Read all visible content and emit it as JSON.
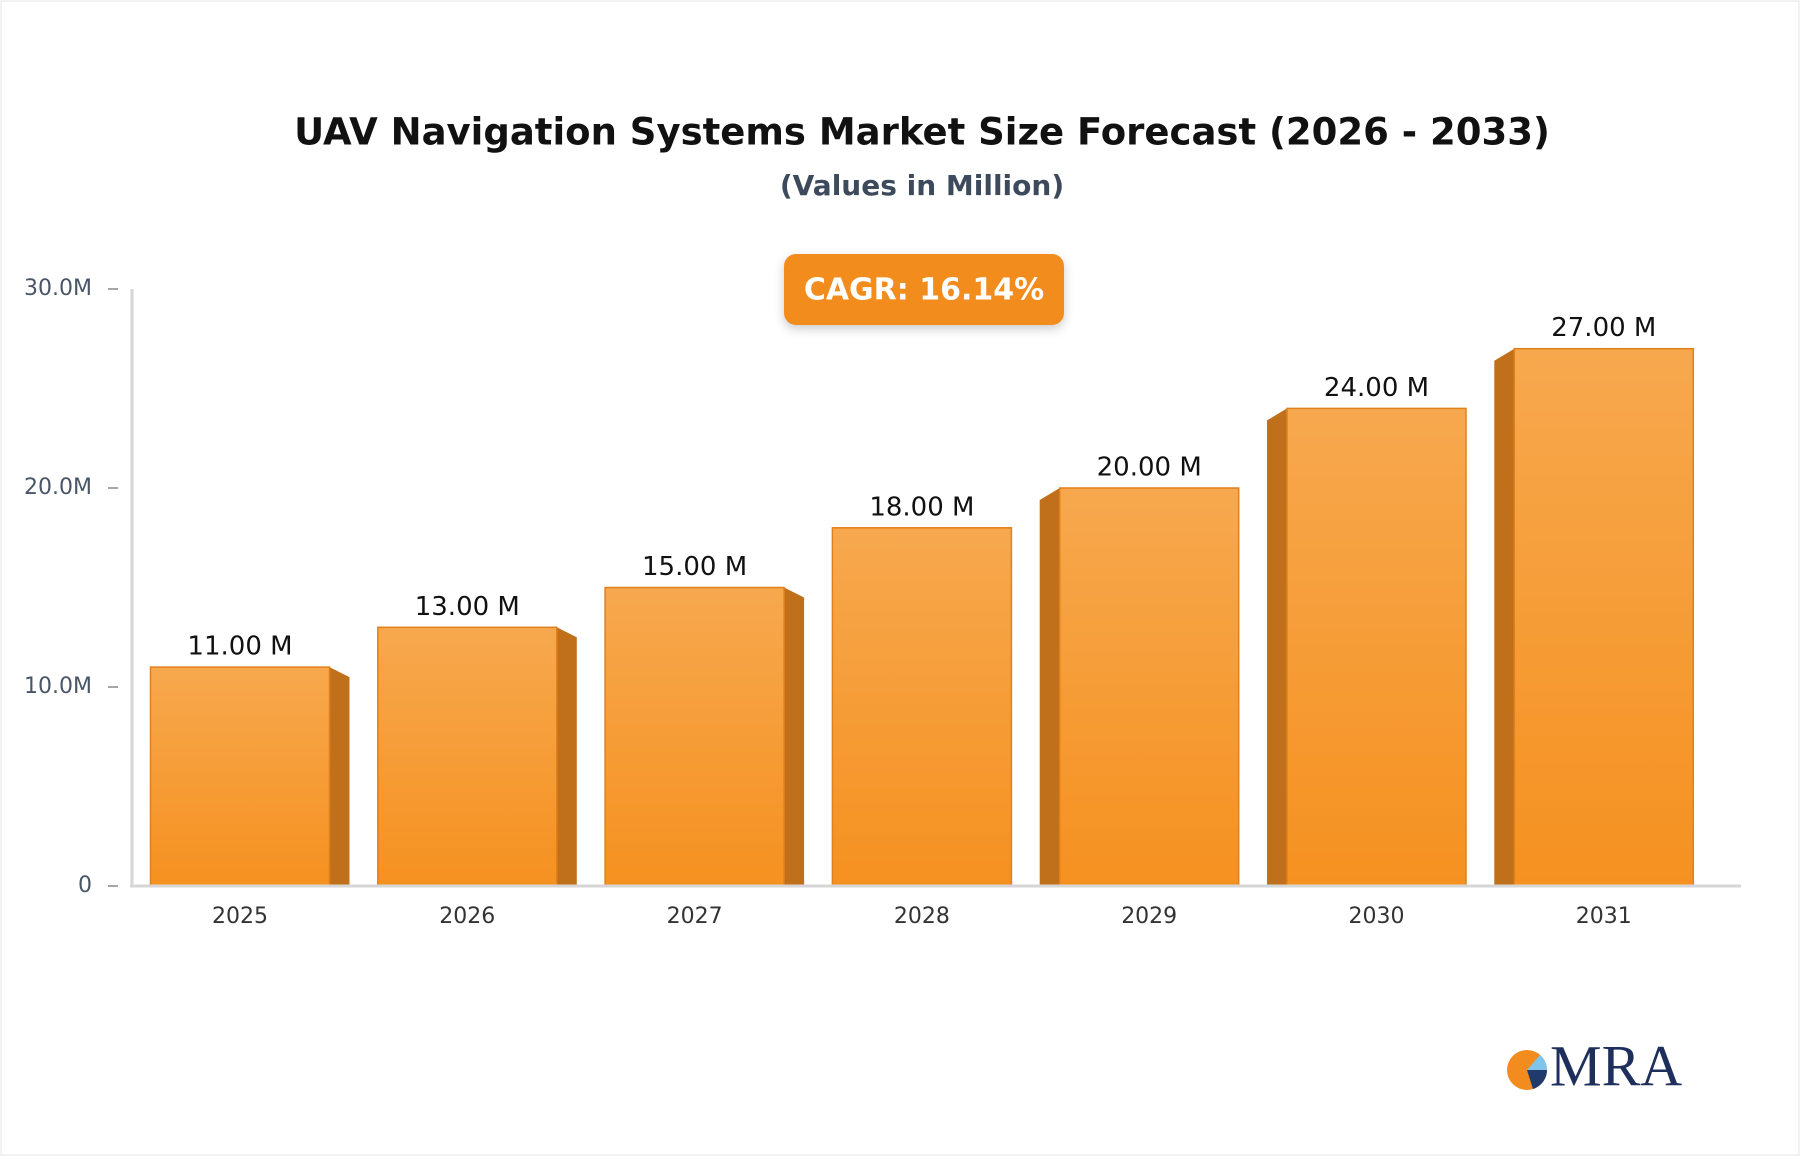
{
  "chart_data": {
    "type": "bar",
    "title": "UAV Navigation Systems Market Size Forecast (2026 - 2033)",
    "subtitle": "(Values in Million)",
    "annotation": "CAGR: 16.14%",
    "categories": [
      "2025",
      "2026",
      "2027",
      "2028",
      "2029",
      "2030",
      "2031"
    ],
    "values": [
      11,
      13,
      15,
      18,
      20,
      24,
      27
    ],
    "value_labels": [
      "11.00 M",
      "13.00 M",
      "15.00 M",
      "18.00 M",
      "20.00 M",
      "24.00 M",
      "27.00 M"
    ],
    "color": "#f59528",
    "ylim": [
      0,
      30
    ],
    "yticks": [
      0,
      {
        "value": 10,
        "label": "10.0M"
      },
      {
        "value": 20,
        "label": "20.0M"
      },
      {
        "value": 30,
        "label": "30.0M"
      }
    ],
    "grid": false
  },
  "brand": "MRA"
}
